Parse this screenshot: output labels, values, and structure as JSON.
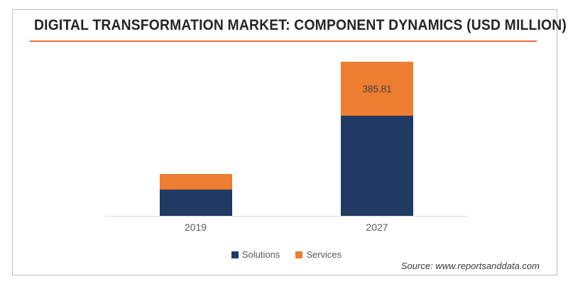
{
  "header": {
    "title": "DIGITAL TRANSFORMATION MARKET: COMPONENT DYNAMICS (USD MILLION)"
  },
  "footer": {
    "source": "Source: www.reportsanddata.com"
  },
  "colors": {
    "solutions": "#203a63",
    "services": "#ed7d31",
    "title_underline": "#ed6a3d",
    "axis_line": "#d9d9d9",
    "card_border": "#bdbdbd",
    "data_label_text": "#404040",
    "axis_text": "#595959",
    "title_text": "#262626"
  },
  "chart_data": {
    "type": "bar",
    "stacked": true,
    "title": "DIGITAL TRANSFORMATION MARKET: COMPONENT DYNAMICS (USD MILLION)",
    "value_unit": "USD Million",
    "categories": [
      "2019",
      "2027"
    ],
    "series": [
      {
        "name": "Solutions",
        "color": "#203a63",
        "values": [
          190,
          715
        ],
        "labels": [
          null,
          null
        ]
      },
      {
        "name": "Services",
        "color": "#ed7d31",
        "values": [
          110,
          385.81
        ],
        "labels": [
          null,
          "385.81"
        ]
      }
    ],
    "xlabel": "",
    "ylabel": "",
    "grid": false,
    "y_axis_shown": false,
    "legend_position": "bottom"
  }
}
